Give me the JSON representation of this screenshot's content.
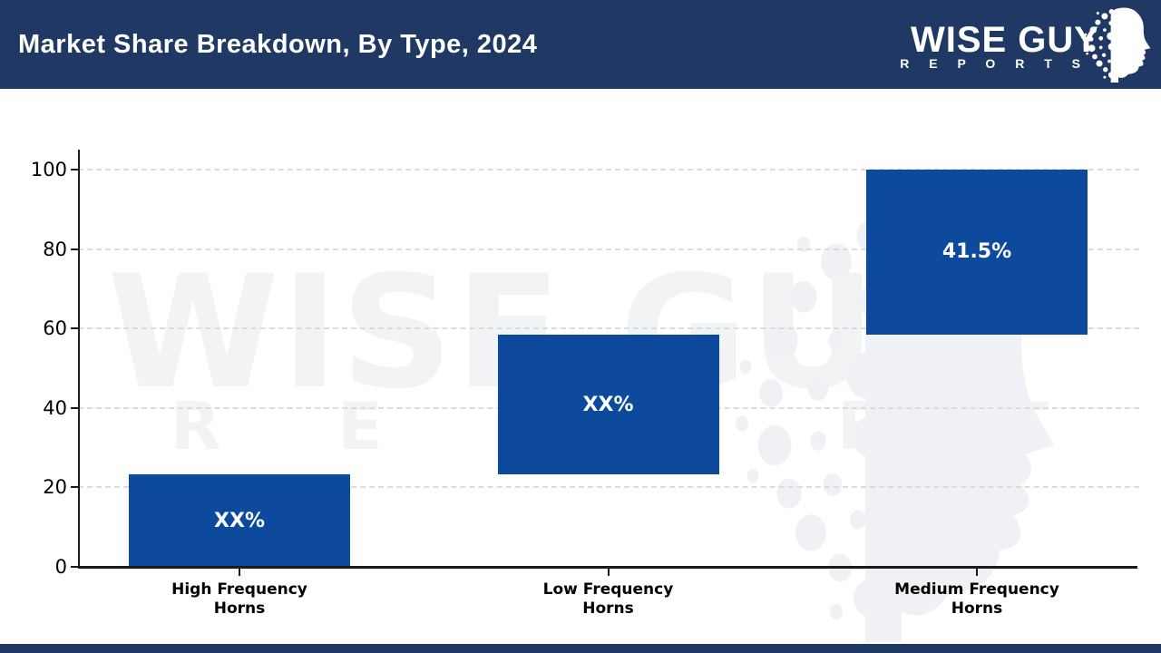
{
  "header": {
    "title": "Market Share Breakdown, By Type, 2024",
    "logo": {
      "line1": "WISE GUY",
      "line2": "R E P O R T S"
    }
  },
  "watermark": {
    "line1": "WISE GUY",
    "line2": "R E P O R T S"
  },
  "chart_data": {
    "type": "bar",
    "subtype": "stacked-waterfall (floating segments cumulating to 100%)",
    "title": "Market Share Breakdown, By Type, 2024",
    "xlabel": "",
    "ylabel": "",
    "yticks": [
      0,
      20,
      40,
      60,
      80,
      100
    ],
    "ylim": [
      0,
      105
    ],
    "grid": "horizontal dashed",
    "legend": "none",
    "bar_color": "#0d4a9e",
    "value_label_color": "#ffffff",
    "segments": [
      {
        "lines": [
          "High Frequency",
          "Horns"
        ],
        "start": 0,
        "end": 23.2,
        "value_est": 23.2,
        "label": "XX%"
      },
      {
        "lines": [
          "Low Frequency",
          "Horns"
        ],
        "start": 23.2,
        "end": 58.5,
        "value_est": 35.3,
        "label": "XX%"
      },
      {
        "lines": [
          "Medium Frequency",
          "Horns"
        ],
        "start": 58.5,
        "end": 100,
        "value_est": 41.5,
        "label": "41.5%"
      }
    ]
  },
  "colors": {
    "header_bg": "#203864",
    "footer_bg": "#203864",
    "bar": "#0d4a9e",
    "grid": "#dcdcdc",
    "axis": "#1a1a1a",
    "watermark": "#f2f3f5"
  }
}
